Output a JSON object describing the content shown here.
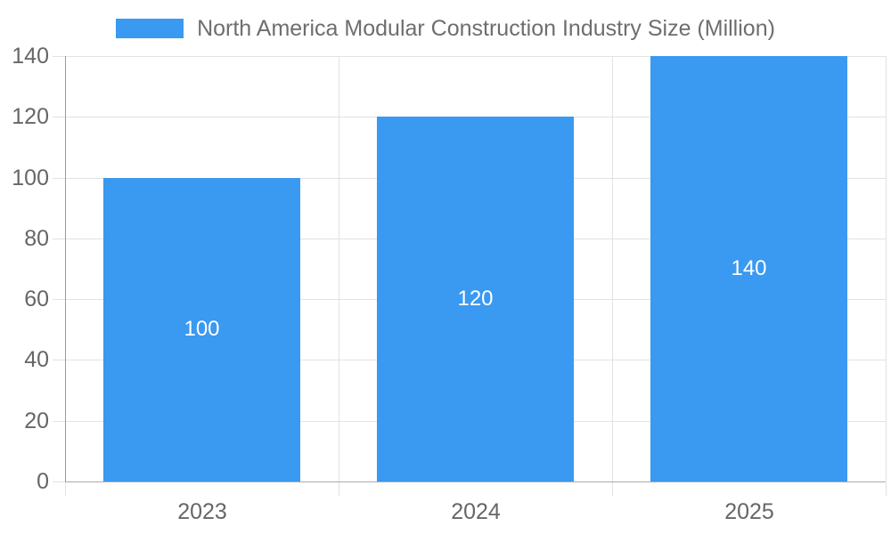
{
  "colors": {
    "bar": "#3A99F0",
    "grid": "#E2E2E2",
    "axis_y": "#999999",
    "axis_x": "#ABABAB",
    "tick_label_text": "#666666",
    "legend_text": "#6E6E6E",
    "data_label_text": "#FFFFFF",
    "background": "#FFFFFF"
  },
  "chart_data": {
    "type": "bar",
    "title": "North America Modular Construction Industry Size (Million)",
    "categories": [
      "2023",
      "2024",
      "2025"
    ],
    "values": [
      100,
      120,
      140
    ],
    "xlabel": "",
    "ylabel": "",
    "ylim": [
      0,
      140
    ],
    "yticks": [
      0,
      20,
      40,
      60,
      80,
      100,
      120,
      140
    ],
    "grid": true,
    "data_label_position": "inside-center",
    "legend": {
      "position": "top-center",
      "entries": [
        {
          "label": "North America Modular Construction Industry Size (Million)",
          "color": "#3A99F0"
        }
      ]
    }
  }
}
